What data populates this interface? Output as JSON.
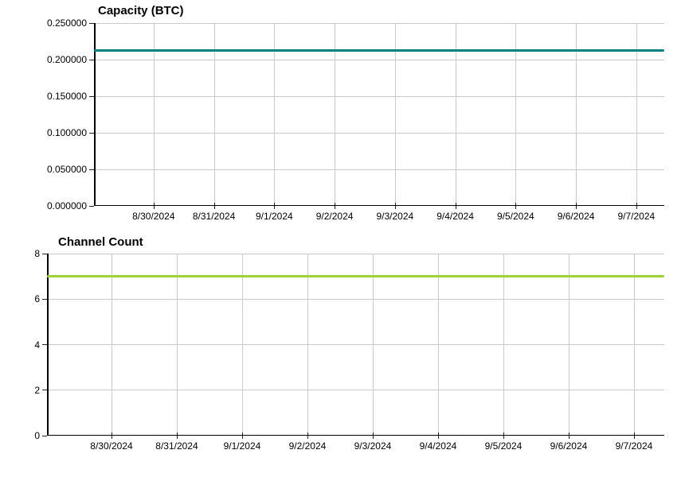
{
  "page": {
    "background": "#ffffff",
    "text_color": "#000000",
    "gridline_color": "#c9c9c9",
    "axis_color": "#000000"
  },
  "chart_data": [
    {
      "type": "line",
      "title": "Capacity (BTC)",
      "x": [
        "8/30/2024",
        "8/31/2024",
        "9/1/2024",
        "9/2/2024",
        "9/3/2024",
        "9/4/2024",
        "9/5/2024",
        "9/6/2024",
        "9/7/2024"
      ],
      "series": [
        {
          "name": "Capacity (BTC)",
          "color": "#008080",
          "values": [
            0.213,
            0.213,
            0.213,
            0.213,
            0.213,
            0.213,
            0.213,
            0.213,
            0.213
          ]
        }
      ],
      "ylim": [
        0,
        0.25
      ],
      "yticks": [
        {
          "value": 0.25,
          "label": "0.250000"
        },
        {
          "value": 0.2,
          "label": "0.200000"
        },
        {
          "value": 0.15,
          "label": "0.150000"
        },
        {
          "value": 0.1,
          "label": "0.100000"
        },
        {
          "value": 0.05,
          "label": "0.050000"
        },
        {
          "value": 0.0,
          "label": "0.000000"
        }
      ],
      "grid": true,
      "legend": "none",
      "layout": {
        "first_tick_frac": 0.1045,
        "tick_step_frac": 0.1058
      }
    },
    {
      "type": "line",
      "title": "Channel Count",
      "x": [
        "8/30/2024",
        "8/31/2024",
        "9/1/2024",
        "9/2/2024",
        "9/3/2024",
        "9/4/2024",
        "9/5/2024",
        "9/6/2024",
        "9/7/2024"
      ],
      "series": [
        {
          "name": "Channel Count",
          "color": "#9fd234",
          "values": [
            7,
            7,
            7,
            7,
            7,
            7,
            7,
            7,
            7
          ]
        }
      ],
      "ylim": [
        0,
        8
      ],
      "yticks": [
        {
          "value": 8,
          "label": "8"
        },
        {
          "value": 6,
          "label": "6"
        },
        {
          "value": 4,
          "label": "4"
        },
        {
          "value": 2,
          "label": "2"
        },
        {
          "value": 0,
          "label": "0"
        }
      ],
      "grid": true,
      "legend": "none",
      "layout": {
        "first_tick_frac": 0.1045,
        "tick_step_frac": 0.1058
      }
    }
  ]
}
